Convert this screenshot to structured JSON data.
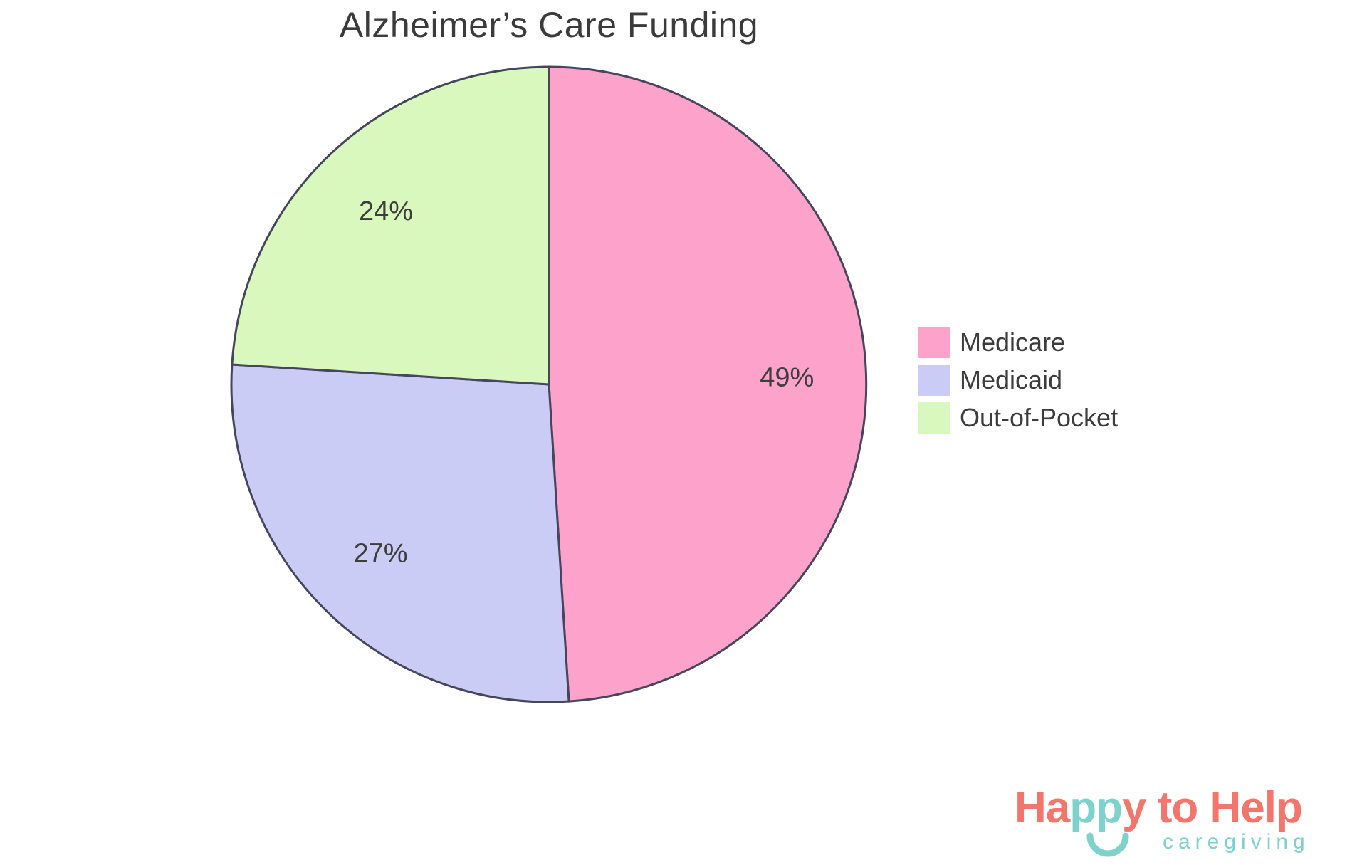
{
  "page": {
    "background": "#ffffff"
  },
  "chart_data": {
    "type": "pie",
    "title": "Alzheimer’s Care Funding",
    "categories": [
      "Medicare",
      "Medicaid",
      "Out-of-Pocket"
    ],
    "values": [
      49,
      27,
      24
    ],
    "unit": "%",
    "slice_labels": [
      "49%",
      "27%",
      "24%"
    ],
    "colors": [
      "#FCA2CB",
      "#CACCF5",
      "#D9F8BD"
    ],
    "edge_color": "#45465E",
    "edge_width": 3,
    "start_angle_deg": 0,
    "direction": "clockwise",
    "label_distance": 0.75,
    "label_color": "#3d3d3d",
    "legend_position": "right",
    "grid": false
  },
  "legend": {
    "items": [
      {
        "label": "Medicare",
        "color": "#FCA2CB"
      },
      {
        "label": "Medicaid",
        "color": "#CACCF5"
      },
      {
        "label": "Out-of-Pocket",
        "color": "#D9F8BD"
      }
    ]
  },
  "watermark": {
    "brand_part1": "Ha",
    "brand_part2": "pp",
    "brand_part3": "y to Help",
    "tagline": "caregiving",
    "coral": "#F2766B",
    "teal": "#7DD2CE"
  }
}
